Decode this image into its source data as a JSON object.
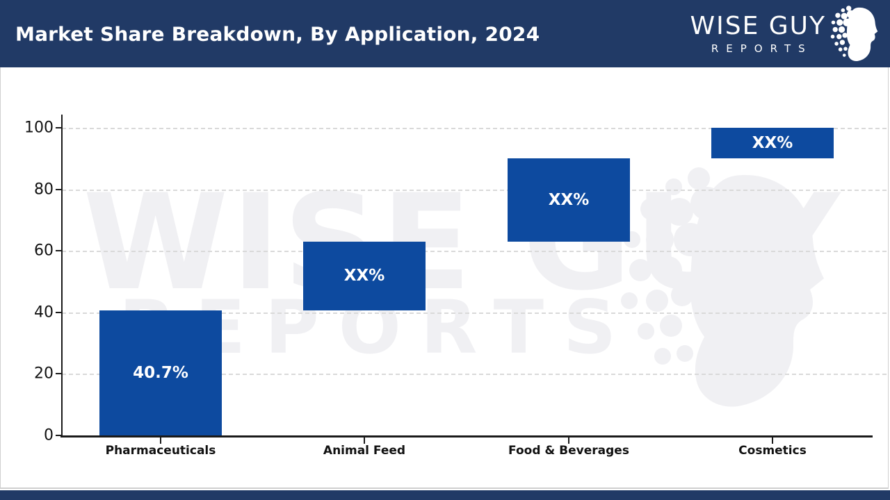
{
  "header": {
    "title": "Market Share Breakdown, By Application, 2024",
    "logo": {
      "wordmark": "WISE GUY",
      "subtext": "REPORTS"
    }
  },
  "watermark": {
    "line1": "WISE GUY",
    "line2": "REPORTS"
  },
  "chart_data": {
    "type": "bar",
    "subtype": "floating-waterfall",
    "title": "Market Share Breakdown, By Application, 2024",
    "categories": [
      "Pharmaceuticals",
      "Animal Feed",
      "Food & Beverages",
      "Cosmetics"
    ],
    "bars": [
      {
        "category": "Pharmaceuticals",
        "start": 0,
        "end": 40.7,
        "label": "40.7%"
      },
      {
        "category": "Animal Feed",
        "start": 40.7,
        "end": 63,
        "label": "XX%"
      },
      {
        "category": "Food & Beverages",
        "start": 63,
        "end": 90,
        "label": "XX%"
      },
      {
        "category": "Cosmetics",
        "start": 90,
        "end": 100,
        "label": "XX%"
      }
    ],
    "yticks": [
      0,
      20,
      40,
      60,
      80,
      100
    ],
    "ylim": [
      0,
      104
    ],
    "xlabel": "",
    "ylabel": "",
    "grid": "horizontal-dashed",
    "legend": "none",
    "bar_color": "#0d4a9f",
    "bar_label_color": "#ffffff"
  },
  "colors": {
    "header_bg": "#213a66",
    "footer_bg": "#213a66",
    "bar": "#0d4a9f",
    "gridline": "#d9d9d9",
    "axis": "#1a1a1a",
    "watermark": "#f0f0f3",
    "canvas_border": "#cfcfcf",
    "tick_text": "#111111"
  }
}
